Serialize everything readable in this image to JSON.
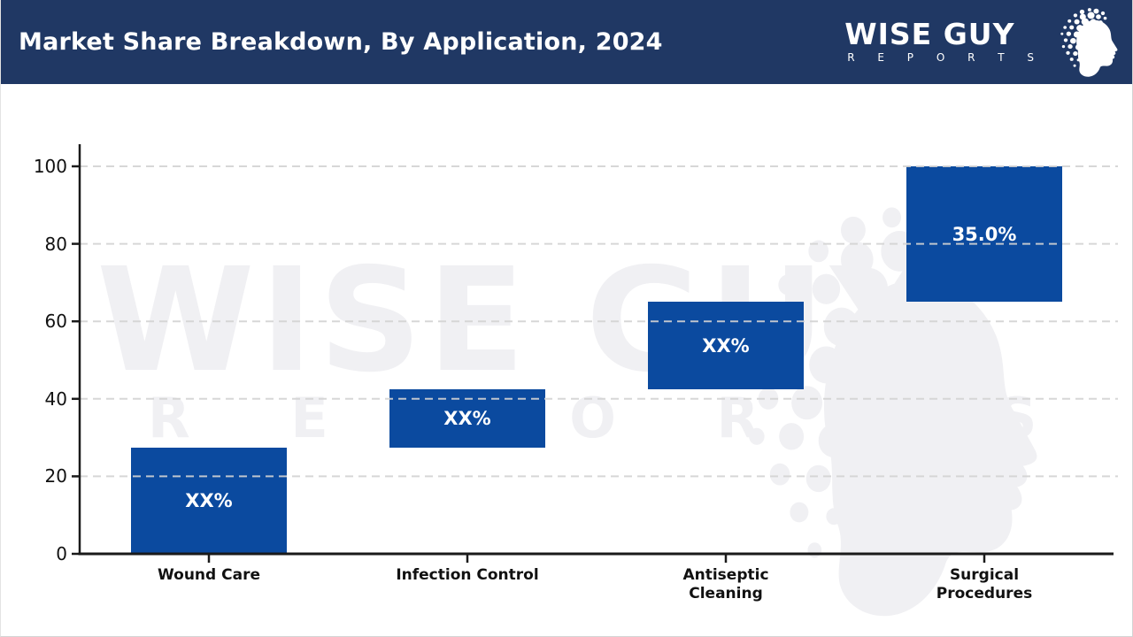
{
  "header": {
    "title": "Market Share Breakdown, By Application, 2024",
    "logo": {
      "line1": "WISE GUY",
      "line2": "R E P O R T S"
    }
  },
  "watermark": {
    "line1": "WISE GUY",
    "line2": "R E P O R T S"
  },
  "chart_data": {
    "type": "bar",
    "subtype": "floating-waterfall",
    "title": "Market Share Breakdown, By Application, 2024",
    "categories": [
      "Wound Care",
      "Infection Control",
      "Antiseptic\nCleaning",
      "Surgical\nProcedures"
    ],
    "segments": [
      {
        "category": "Wound Care",
        "start": 0,
        "end": 27.5,
        "label": "XX%"
      },
      {
        "category": "Infection Control",
        "start": 27.5,
        "end": 42.5,
        "label": "XX%"
      },
      {
        "category": "Antiseptic Cleaning",
        "start": 42.5,
        "end": 65,
        "label": "XX%"
      },
      {
        "category": "Surgical Procedures",
        "start": 65,
        "end": 100,
        "label": "35.0%"
      }
    ],
    "ylim": [
      0,
      100
    ],
    "yticks": [
      0,
      20,
      40,
      60,
      80,
      100
    ],
    "xlabel": "",
    "ylabel": "",
    "grid": "dashed-horizontal",
    "legend": "none"
  },
  "colors": {
    "header_bg": "#203864",
    "bar": "#0b4a9f",
    "bar_label_text": "#ffffff",
    "watermark": "#f0f0f3",
    "grid": "#d8d8d8",
    "axis": "#1a1a1a",
    "tick_text": "#111111"
  }
}
